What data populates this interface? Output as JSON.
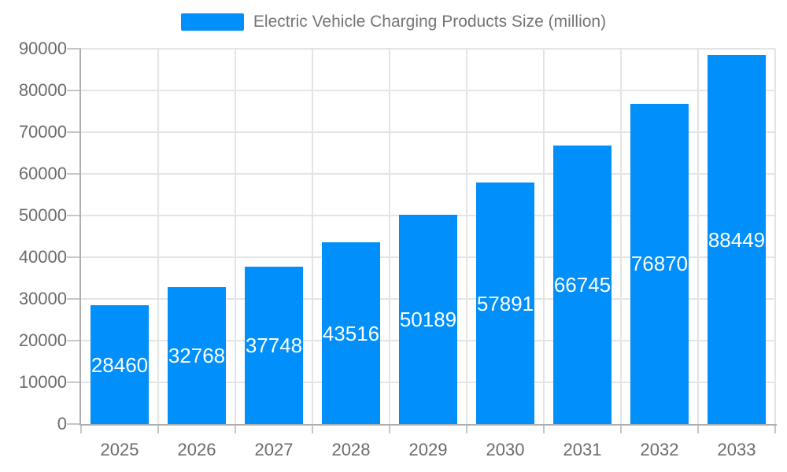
{
  "chart_data": {
    "type": "bar",
    "title": "Electric Vehicle Charging Products Size (million)",
    "categories": [
      "2025",
      "2026",
      "2027",
      "2028",
      "2029",
      "2030",
      "2031",
      "2032",
      "2033"
    ],
    "values": [
      28460,
      32768,
      37748,
      43516,
      50189,
      57891,
      66745,
      76870,
      88449
    ],
    "bar_labels": [
      "28460",
      "32768",
      "37748",
      "43516",
      "50189",
      "57891",
      "66745",
      "76870",
      "88449"
    ],
    "y_ticks": [
      "0",
      "10000",
      "20000",
      "30000",
      "40000",
      "50000",
      "60000",
      "70000",
      "80000",
      "90000"
    ],
    "ylim": [
      0,
      90000
    ],
    "xlabel": "",
    "ylabel": "",
    "grid": "on",
    "legend_position": "top",
    "colors": {
      "bar": "#008FFB",
      "bar_label_text": "#ffffff",
      "grid_line": "#e4e4e4",
      "axis_line": "#aeaeae",
      "tick_mark": "#c6c6c6",
      "axis_label_text": "#6b6b6b",
      "legend_text": "#757575"
    }
  }
}
